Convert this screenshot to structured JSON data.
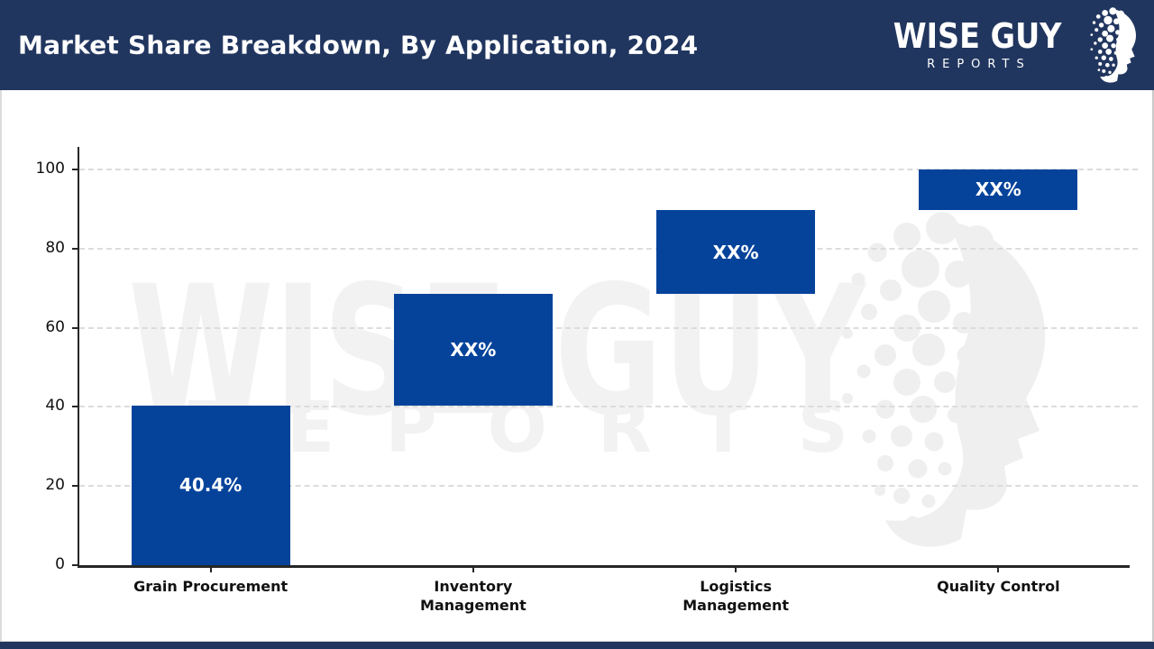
{
  "header": {
    "title": "Market Share Breakdown, By Application, 2024",
    "logo": {
      "line1": "WISE GUY",
      "line2": "REPORTS",
      "icon": "wiseguy-head-icon"
    }
  },
  "watermark": {
    "line1": "WISE GUY",
    "line2": "REPORTS",
    "icon": "wiseguy-head-watermark"
  },
  "colors": {
    "header_bg": "#21365f",
    "footer_bg": "#21365f",
    "bar_blue": "#05439b",
    "watermark_gray": "#f2f2f2",
    "gridline_gray": "#dcdcdc",
    "axis_dark": "#262626"
  },
  "chart_data": {
    "type": "bar",
    "subtype": "waterfall-floating-bars",
    "title": "Market Share Breakdown, By Application, 2024",
    "categories": [
      "Grain Procurement",
      "Inventory\nManagement",
      "Logistics\nManagement",
      "Quality Control"
    ],
    "segments": [
      {
        "category": "Grain Procurement",
        "start": 0,
        "end": 40.4,
        "label": "40.4%"
      },
      {
        "category": "Inventory Management",
        "start": 40.4,
        "end": 68.5,
        "label": "XX%"
      },
      {
        "category": "Logistics Management",
        "start": 68.5,
        "end": 89.8,
        "label": "XX%"
      },
      {
        "category": "Quality Control",
        "start": 89.8,
        "end": 100,
        "label": "XX%"
      }
    ],
    "yticks": [
      0,
      20,
      40,
      60,
      80,
      100
    ],
    "ylim": [
      0,
      105.5
    ],
    "xlabel": "",
    "ylabel": "",
    "grid": "horizontal-dashed",
    "legend": "none",
    "bar_color": "#05439b",
    "value_label_color": "#ffffff"
  }
}
